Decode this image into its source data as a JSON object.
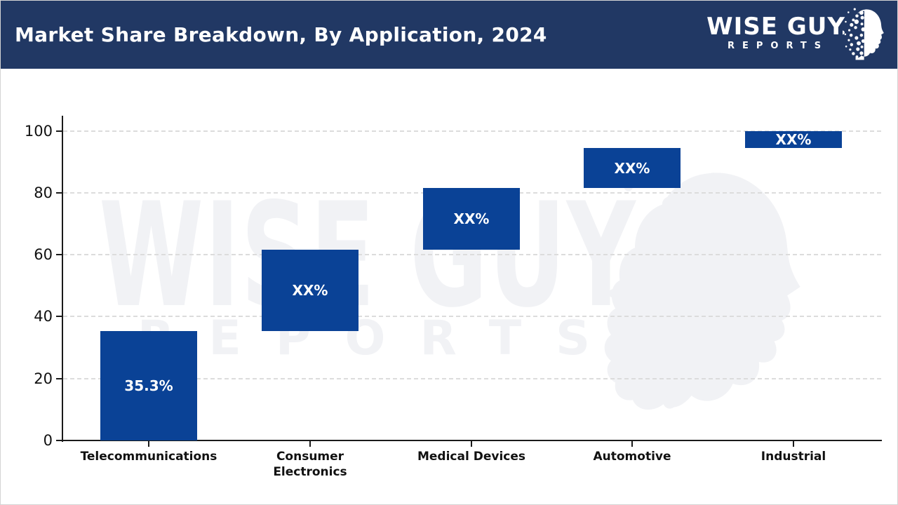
{
  "header": {
    "title": "Market Share Breakdown, By Application, 2024",
    "logo": {
      "wordmark": "WISE GUY",
      "subtext": "REPORTS"
    }
  },
  "watermark": {
    "wordmark": "WISE GUY",
    "subtext": "REPORTS"
  },
  "colors": {
    "header_bg": "#213864",
    "bar": "#0a4296",
    "axis": "#1a1a1a",
    "gridline": "#dcdcdc",
    "watermark": "#f1f2f5",
    "title_text": "#ffffff",
    "bar_label_text": "#ffffff"
  },
  "chart_data": {
    "type": "bar",
    "subtype": "waterfall",
    "title": "Market Share Breakdown, By Application, 2024",
    "categories": [
      "Telecommunications",
      "Consumer\nElectronics",
      "Medical Devices",
      "Automotive",
      "Industrial"
    ],
    "segments": [
      {
        "category": "Telecommunications",
        "start": 0,
        "end": 35.3,
        "label": "35.3%"
      },
      {
        "category": "Consumer Electronics",
        "start": 35.3,
        "end": 61.7,
        "label": "XX%"
      },
      {
        "category": "Medical Devices",
        "start": 61.7,
        "end": 81.5,
        "label": "XX%"
      },
      {
        "category": "Automotive",
        "start": 81.5,
        "end": 94.5,
        "label": "XX%"
      },
      {
        "category": "Industrial",
        "start": 94.5,
        "end": 100,
        "label": "XX%"
      }
    ],
    "xlabel": "",
    "ylabel": "",
    "ylim": [
      0,
      100
    ],
    "yticks": [
      0,
      20,
      40,
      60,
      80,
      100
    ],
    "grid": "horizontal-dashed",
    "legend": null
  }
}
